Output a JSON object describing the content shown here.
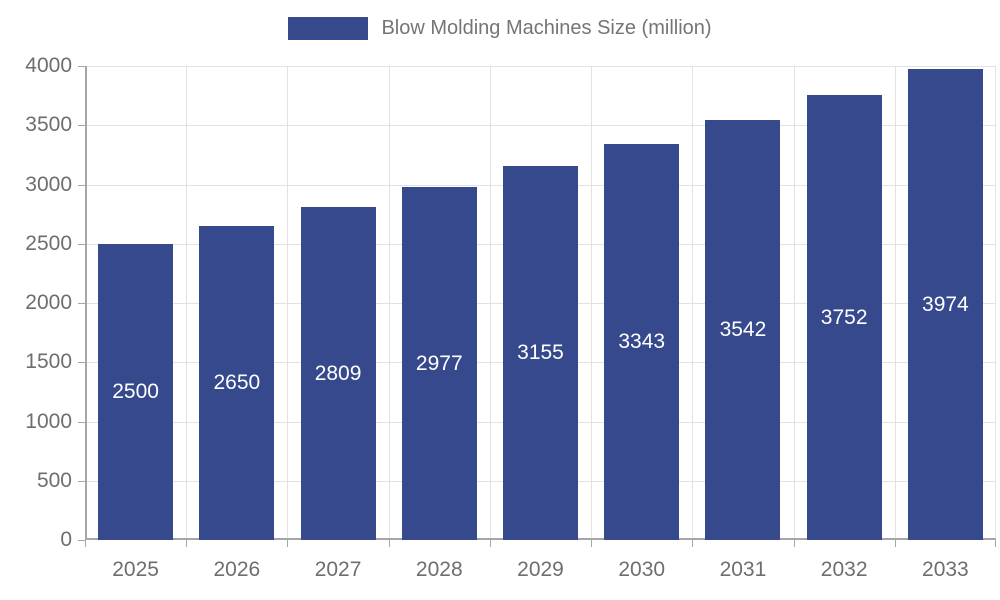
{
  "legend": {
    "label": "Blow Molding Machines Size (million)"
  },
  "colors": {
    "bar": "#36498c",
    "bar_label": "#ffffff",
    "legend_text": "#757575",
    "axis_text": "#6e6e6e",
    "grid": "#e2e2e2",
    "axis_line": "#a6a6a6"
  },
  "chart_data": {
    "type": "bar",
    "title": "Blow Molding Machines Size (million)",
    "categories": [
      "2025",
      "2026",
      "2027",
      "2028",
      "2029",
      "2030",
      "2031",
      "2032",
      "2033"
    ],
    "values": [
      2500,
      2650,
      2809,
      2977,
      3155,
      3343,
      3542,
      3752,
      3974
    ],
    "xlabel": "",
    "ylabel": "",
    "ylim": [
      0,
      4000
    ],
    "ytick_step": 500,
    "ytick_labels": [
      "0",
      "500",
      "1000",
      "1500",
      "2000",
      "2500",
      "3000",
      "3500",
      "4000"
    ],
    "grid": true,
    "legend_position": "top-center",
    "bar_labels_inside": true
  }
}
